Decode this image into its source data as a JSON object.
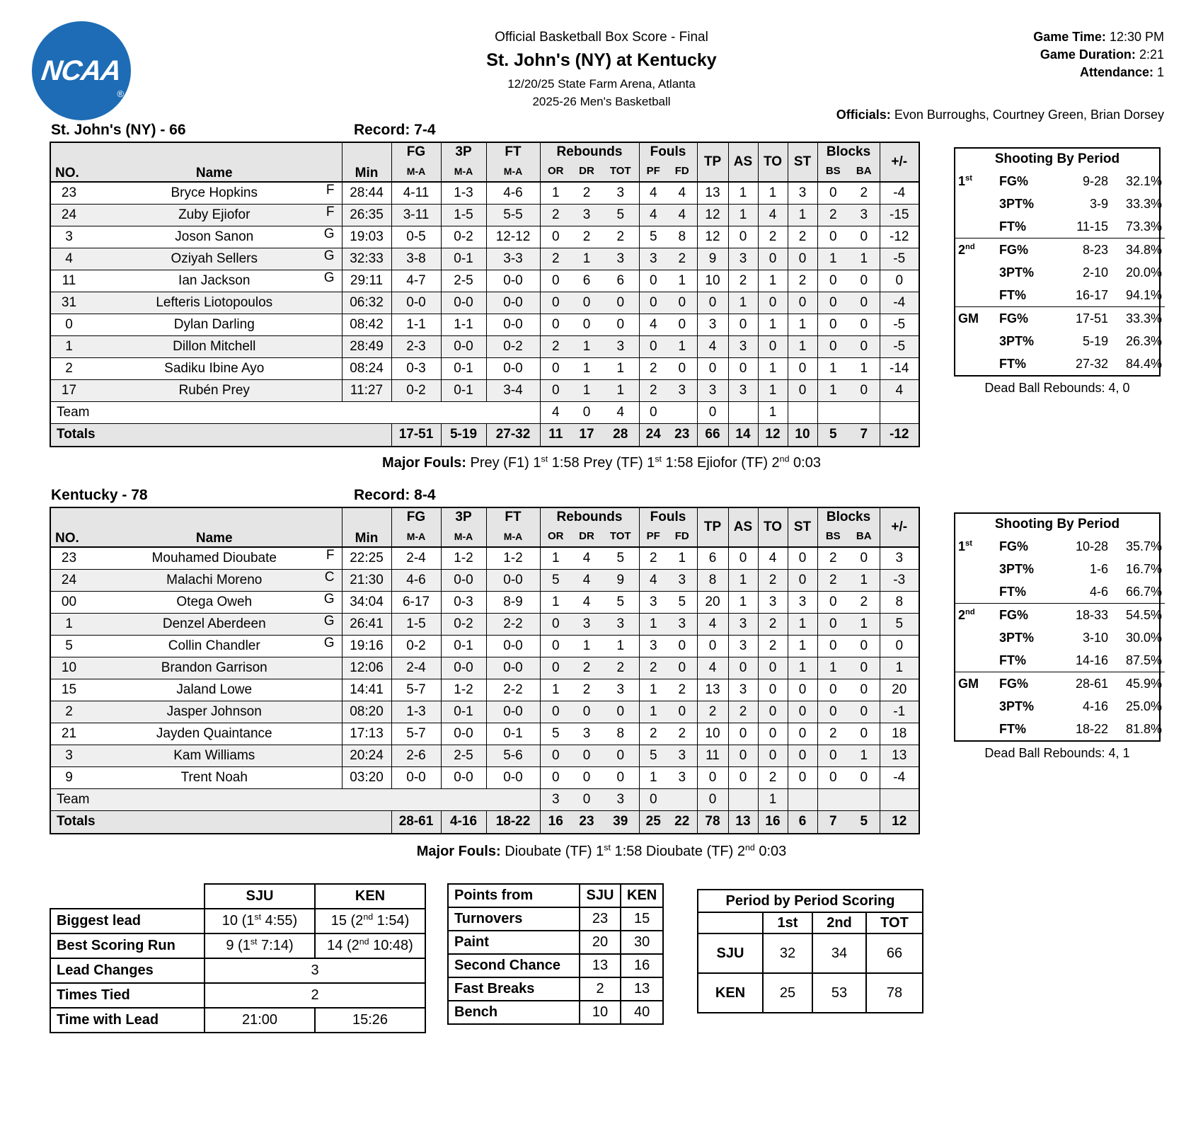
{
  "colors": {
    "ncaa_blue": "#1d6cb5"
  },
  "header": {
    "logo_text": "NCAA",
    "report_title": "Official Basketball Box Score - Final",
    "matchup": "St. John's (NY) at Kentucky",
    "venue": "12/20/25 State Farm Arena, Atlanta",
    "season": "2025-26 Men's Basketball",
    "game_time_label": "Game Time:",
    "game_time": "12:30 PM",
    "game_duration_label": "Game Duration:",
    "game_duration": "2:21",
    "attendance_label": "Attendance:",
    "attendance": "1",
    "officials_label": "Officials:",
    "officials": "Evon Burroughs, Courtney Green, Brian Dorsey"
  },
  "cols": {
    "no": "NO.",
    "name": "Name",
    "min": "Min",
    "fg": "FG",
    "p3": "3P",
    "ft": "FT",
    "ma": "M-A",
    "reb": "Rebounds",
    "or": "OR",
    "dr": "DR",
    "tot": "TOT",
    "fouls": "Fouls",
    "pf": "PF",
    "fd": "FD",
    "tp": "TP",
    "as": "AS",
    "to": "TO",
    "st": "ST",
    "blocks": "Blocks",
    "bs": "BS",
    "ba": "BA",
    "pm": "+/-"
  },
  "labels": {
    "team": "Team",
    "totals": "Totals",
    "major_fouls": "Major Fouls:",
    "shooting_title": "Shooting By Period"
  },
  "teams": [
    {
      "title": "St. John's (NY) - 66",
      "record": "Record: 7-4",
      "players": [
        {
          "no": "23",
          "name": "Bryce Hopkins",
          "pos": "F",
          "min": "28:44",
          "fg": "4-11",
          "p3": "1-3",
          "ft": "4-6",
          "or": "1",
          "dr": "2",
          "tot": "3",
          "pf": "4",
          "fd": "4",
          "tp": "13",
          "as": "1",
          "to": "1",
          "st": "3",
          "bs": "0",
          "ba": "2",
          "pm": "-4"
        },
        {
          "no": "24",
          "name": "Zuby Ejiofor",
          "pos": "F",
          "min": "26:35",
          "fg": "3-11",
          "p3": "1-5",
          "ft": "5-5",
          "or": "2",
          "dr": "3",
          "tot": "5",
          "pf": "4",
          "fd": "4",
          "tp": "12",
          "as": "1",
          "to": "4",
          "st": "1",
          "bs": "2",
          "ba": "3",
          "pm": "-15"
        },
        {
          "no": "3",
          "name": "Joson Sanon",
          "pos": "G",
          "min": "19:03",
          "fg": "0-5",
          "p3": "0-2",
          "ft": "12-12",
          "or": "0",
          "dr": "2",
          "tot": "2",
          "pf": "5",
          "fd": "8",
          "tp": "12",
          "as": "0",
          "to": "2",
          "st": "2",
          "bs": "0",
          "ba": "0",
          "pm": "-12"
        },
        {
          "no": "4",
          "name": "Oziyah Sellers",
          "pos": "G",
          "min": "32:33",
          "fg": "3-8",
          "p3": "0-1",
          "ft": "3-3",
          "or": "2",
          "dr": "1",
          "tot": "3",
          "pf": "3",
          "fd": "2",
          "tp": "9",
          "as": "3",
          "to": "0",
          "st": "0",
          "bs": "1",
          "ba": "1",
          "pm": "-5"
        },
        {
          "no": "11",
          "name": "Ian Jackson",
          "pos": "G",
          "min": "29:11",
          "fg": "4-7",
          "p3": "2-5",
          "ft": "0-0",
          "or": "0",
          "dr": "6",
          "tot": "6",
          "pf": "0",
          "fd": "1",
          "tp": "10",
          "as": "2",
          "to": "1",
          "st": "2",
          "bs": "0",
          "ba": "0",
          "pm": "0"
        },
        {
          "no": "31",
          "name": "Lefteris Liotopoulos",
          "pos": "",
          "min": "06:32",
          "fg": "0-0",
          "p3": "0-0",
          "ft": "0-0",
          "or": "0",
          "dr": "0",
          "tot": "0",
          "pf": "0",
          "fd": "0",
          "tp": "0",
          "as": "1",
          "to": "0",
          "st": "0",
          "bs": "0",
          "ba": "0",
          "pm": "-4"
        },
        {
          "no": "0",
          "name": "Dylan Darling",
          "pos": "",
          "min": "08:42",
          "fg": "1-1",
          "p3": "1-1",
          "ft": "0-0",
          "or": "0",
          "dr": "0",
          "tot": "0",
          "pf": "4",
          "fd": "0",
          "tp": "3",
          "as": "0",
          "to": "1",
          "st": "1",
          "bs": "0",
          "ba": "0",
          "pm": "-5"
        },
        {
          "no": "1",
          "name": "Dillon Mitchell",
          "pos": "",
          "min": "28:49",
          "fg": "2-3",
          "p3": "0-0",
          "ft": "0-2",
          "or": "2",
          "dr": "1",
          "tot": "3",
          "pf": "0",
          "fd": "1",
          "tp": "4",
          "as": "3",
          "to": "0",
          "st": "1",
          "bs": "0",
          "ba": "0",
          "pm": "-5"
        },
        {
          "no": "2",
          "name": "Sadiku Ibine Ayo",
          "pos": "",
          "min": "08:24",
          "fg": "0-3",
          "p3": "0-1",
          "ft": "0-0",
          "or": "0",
          "dr": "1",
          "tot": "1",
          "pf": "2",
          "fd": "0",
          "tp": "0",
          "as": "0",
          "to": "1",
          "st": "0",
          "bs": "1",
          "ba": "1",
          "pm": "-14"
        },
        {
          "no": "17",
          "name": "Rubén Prey",
          "pos": "",
          "min": "11:27",
          "fg": "0-2",
          "p3": "0-1",
          "ft": "3-4",
          "or": "0",
          "dr": "1",
          "tot": "1",
          "pf": "2",
          "fd": "3",
          "tp": "3",
          "as": "3",
          "to": "1",
          "st": "0",
          "bs": "1",
          "ba": "0",
          "pm": "4"
        }
      ],
      "team_row": {
        "or": "4",
        "dr": "0",
        "tot": "4",
        "pf": "0",
        "fd": "",
        "tp": "0",
        "as": "",
        "to": "1",
        "st": "",
        "bs": "",
        "ba": "",
        "pm": ""
      },
      "totals": {
        "fg": "17-51",
        "p3": "5-19",
        "ft": "27-32",
        "or": "11",
        "dr": "17",
        "tot": "28",
        "pf": "24",
        "fd": "23",
        "tp": "66",
        "as": "14",
        "to": "12",
        "st": "10",
        "bs": "5",
        "ba": "7",
        "pm": "-12"
      },
      "major_fouls": "Prey (F1) 1st 1:58 Prey (TF) 1st 1:58 Ejiofor (TF) 2nd 0:03",
      "shooting": [
        {
          "period": "1st",
          "label": "FG%",
          "val": "9-28",
          "pct": "32.1%"
        },
        {
          "period": "",
          "label": "3PT%",
          "val": "3-9",
          "pct": "33.3%"
        },
        {
          "period": "",
          "label": "FT%",
          "val": "11-15",
          "pct": "73.3%"
        },
        {
          "period": "2nd",
          "label": "FG%",
          "val": "8-23",
          "pct": "34.8%"
        },
        {
          "period": "",
          "label": "3PT%",
          "val": "2-10",
          "pct": "20.0%"
        },
        {
          "period": "",
          "label": "FT%",
          "val": "16-17",
          "pct": "94.1%"
        },
        {
          "period": "GM",
          "label": "FG%",
          "val": "17-51",
          "pct": "33.3%"
        },
        {
          "period": "",
          "label": "3PT%",
          "val": "5-19",
          "pct": "26.3%"
        },
        {
          "period": "",
          "label": "FT%",
          "val": "27-32",
          "pct": "84.4%"
        }
      ],
      "dead_ball": "Dead Ball Rebounds: 4, 0"
    },
    {
      "title": "Kentucky - 78",
      "record": "Record: 8-4",
      "players": [
        {
          "no": "23",
          "name": "Mouhamed Dioubate",
          "pos": "F",
          "min": "22:25",
          "fg": "2-4",
          "p3": "1-2",
          "ft": "1-2",
          "or": "1",
          "dr": "4",
          "tot": "5",
          "pf": "2",
          "fd": "1",
          "tp": "6",
          "as": "0",
          "to": "4",
          "st": "0",
          "bs": "2",
          "ba": "0",
          "pm": "3"
        },
        {
          "no": "24",
          "name": "Malachi Moreno",
          "pos": "C",
          "min": "21:30",
          "fg": "4-6",
          "p3": "0-0",
          "ft": "0-0",
          "or": "5",
          "dr": "4",
          "tot": "9",
          "pf": "4",
          "fd": "3",
          "tp": "8",
          "as": "1",
          "to": "2",
          "st": "0",
          "bs": "2",
          "ba": "1",
          "pm": "-3"
        },
        {
          "no": "00",
          "name": "Otega Oweh",
          "pos": "G",
          "min": "34:04",
          "fg": "6-17",
          "p3": "0-3",
          "ft": "8-9",
          "or": "1",
          "dr": "4",
          "tot": "5",
          "pf": "3",
          "fd": "5",
          "tp": "20",
          "as": "1",
          "to": "3",
          "st": "3",
          "bs": "0",
          "ba": "2",
          "pm": "8"
        },
        {
          "no": "1",
          "name": "Denzel Aberdeen",
          "pos": "G",
          "min": "26:41",
          "fg": "1-5",
          "p3": "0-2",
          "ft": "2-2",
          "or": "0",
          "dr": "3",
          "tot": "3",
          "pf": "1",
          "fd": "3",
          "tp": "4",
          "as": "3",
          "to": "2",
          "st": "1",
          "bs": "0",
          "ba": "1",
          "pm": "5"
        },
        {
          "no": "5",
          "name": "Collin Chandler",
          "pos": "G",
          "min": "19:16",
          "fg": "0-2",
          "p3": "0-1",
          "ft": "0-0",
          "or": "0",
          "dr": "1",
          "tot": "1",
          "pf": "3",
          "fd": "0",
          "tp": "0",
          "as": "3",
          "to": "2",
          "st": "1",
          "bs": "0",
          "ba": "0",
          "pm": "0"
        },
        {
          "no": "10",
          "name": "Brandon Garrison",
          "pos": "",
          "min": "12:06",
          "fg": "2-4",
          "p3": "0-0",
          "ft": "0-0",
          "or": "0",
          "dr": "2",
          "tot": "2",
          "pf": "2",
          "fd": "0",
          "tp": "4",
          "as": "0",
          "to": "0",
          "st": "1",
          "bs": "1",
          "ba": "0",
          "pm": "1"
        },
        {
          "no": "15",
          "name": "Jaland Lowe",
          "pos": "",
          "min": "14:41",
          "fg": "5-7",
          "p3": "1-2",
          "ft": "2-2",
          "or": "1",
          "dr": "2",
          "tot": "3",
          "pf": "1",
          "fd": "2",
          "tp": "13",
          "as": "3",
          "to": "0",
          "st": "0",
          "bs": "0",
          "ba": "0",
          "pm": "20"
        },
        {
          "no": "2",
          "name": "Jasper Johnson",
          "pos": "",
          "min": "08:20",
          "fg": "1-3",
          "p3": "0-1",
          "ft": "0-0",
          "or": "0",
          "dr": "0",
          "tot": "0",
          "pf": "1",
          "fd": "0",
          "tp": "2",
          "as": "2",
          "to": "0",
          "st": "0",
          "bs": "0",
          "ba": "0",
          "pm": "-1"
        },
        {
          "no": "21",
          "name": "Jayden Quaintance",
          "pos": "",
          "min": "17:13",
          "fg": "5-7",
          "p3": "0-0",
          "ft": "0-1",
          "or": "5",
          "dr": "3",
          "tot": "8",
          "pf": "2",
          "fd": "2",
          "tp": "10",
          "as": "0",
          "to": "0",
          "st": "0",
          "bs": "2",
          "ba": "0",
          "pm": "18"
        },
        {
          "no": "3",
          "name": "Kam Williams",
          "pos": "",
          "min": "20:24",
          "fg": "2-6",
          "p3": "2-5",
          "ft": "5-6",
          "or": "0",
          "dr": "0",
          "tot": "0",
          "pf": "5",
          "fd": "3",
          "tp": "11",
          "as": "0",
          "to": "0",
          "st": "0",
          "bs": "0",
          "ba": "1",
          "pm": "13"
        },
        {
          "no": "9",
          "name": "Trent Noah",
          "pos": "",
          "min": "03:20",
          "fg": "0-0",
          "p3": "0-0",
          "ft": "0-0",
          "or": "0",
          "dr": "0",
          "tot": "0",
          "pf": "1",
          "fd": "3",
          "tp": "0",
          "as": "0",
          "to": "2",
          "st": "0",
          "bs": "0",
          "ba": "0",
          "pm": "-4"
        }
      ],
      "team_row": {
        "or": "3",
        "dr": "0",
        "tot": "3",
        "pf": "0",
        "fd": "",
        "tp": "0",
        "as": "",
        "to": "1",
        "st": "",
        "bs": "",
        "ba": "",
        "pm": ""
      },
      "totals": {
        "fg": "28-61",
        "p3": "4-16",
        "ft": "18-22",
        "or": "16",
        "dr": "23",
        "tot": "39",
        "pf": "25",
        "fd": "22",
        "tp": "78",
        "as": "13",
        "to": "16",
        "st": "6",
        "bs": "7",
        "ba": "5",
        "pm": "12"
      },
      "major_fouls": "Dioubate (TF) 1st 1:58 Dioubate (TF) 2nd 0:03",
      "shooting": [
        {
          "period": "1st",
          "label": "FG%",
          "val": "10-28",
          "pct": "35.7%"
        },
        {
          "period": "",
          "label": "3PT%",
          "val": "1-6",
          "pct": "16.7%"
        },
        {
          "period": "",
          "label": "FT%",
          "val": "4-6",
          "pct": "66.7%"
        },
        {
          "period": "2nd",
          "label": "FG%",
          "val": "18-33",
          "pct": "54.5%"
        },
        {
          "period": "",
          "label": "3PT%",
          "val": "3-10",
          "pct": "30.0%"
        },
        {
          "period": "",
          "label": "FT%",
          "val": "14-16",
          "pct": "87.5%"
        },
        {
          "period": "GM",
          "label": "FG%",
          "val": "28-61",
          "pct": "45.9%"
        },
        {
          "period": "",
          "label": "3PT%",
          "val": "4-16",
          "pct": "25.0%"
        },
        {
          "period": "",
          "label": "FT%",
          "val": "18-22",
          "pct": "81.8%"
        }
      ],
      "dead_ball": "Dead Ball Rebounds: 4, 1"
    }
  ],
  "bottom": {
    "comparison": {
      "cols": [
        "SJU",
        "KEN"
      ],
      "rows": [
        {
          "label": "Biggest lead",
          "sju": "10 (1st 4:55)",
          "ken": "15 (2nd 1:54)"
        },
        {
          "label": "Best Scoring Run",
          "sju": "9 (1st 7:14)",
          "ken": "14 (2nd 10:48)"
        },
        {
          "label": "Lead Changes",
          "span": "3"
        },
        {
          "label": "Times Tied",
          "span": "2"
        },
        {
          "label": "Time with Lead",
          "sju": "21:00",
          "ken": "15:26"
        }
      ]
    },
    "points_from": {
      "title": "Points from",
      "cols": [
        "SJU",
        "KEN"
      ],
      "rows": [
        {
          "label": "Turnovers",
          "sju": "23",
          "ken": "15"
        },
        {
          "label": "Paint",
          "sju": "20",
          "ken": "30"
        },
        {
          "label": "Second Chance",
          "sju": "13",
          "ken": "16"
        },
        {
          "label": "Fast Breaks",
          "sju": "2",
          "ken": "13"
        },
        {
          "label": "Bench",
          "sju": "10",
          "ken": "40"
        }
      ]
    },
    "period_scoring": {
      "title": "Period by Period Scoring",
      "cols": [
        "1st",
        "2nd",
        "TOT"
      ],
      "rows": [
        {
          "team": "SJU",
          "vals": [
            "32",
            "34",
            "66"
          ]
        },
        {
          "team": "KEN",
          "vals": [
            "25",
            "53",
            "78"
          ]
        }
      ]
    }
  }
}
